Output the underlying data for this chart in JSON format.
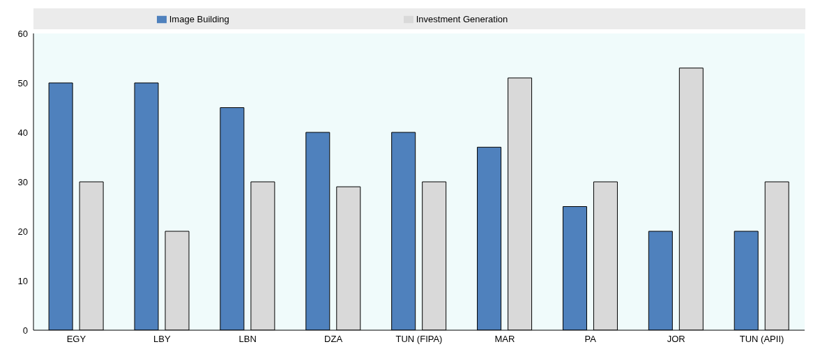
{
  "chart_data": {
    "type": "bar",
    "categories": [
      "EGY",
      "LBY",
      "LBN",
      "DZA",
      "TUN (FIPA)",
      "MAR",
      "PA",
      "JOR",
      "TUN (APII)"
    ],
    "series": [
      {
        "name": "Image Building",
        "color": "#4f81bd",
        "values": [
          50,
          50,
          45,
          40,
          40,
          37,
          25,
          20,
          20
        ]
      },
      {
        "name": "Investment Generation",
        "color": "#d9d9d9",
        "values": [
          30,
          20,
          30,
          29,
          30,
          51,
          30,
          53,
          30
        ]
      }
    ],
    "ylim": [
      0,
      60
    ],
    "yticks": [
      0,
      10,
      20,
      30,
      40,
      50,
      60
    ],
    "legend": "top"
  }
}
